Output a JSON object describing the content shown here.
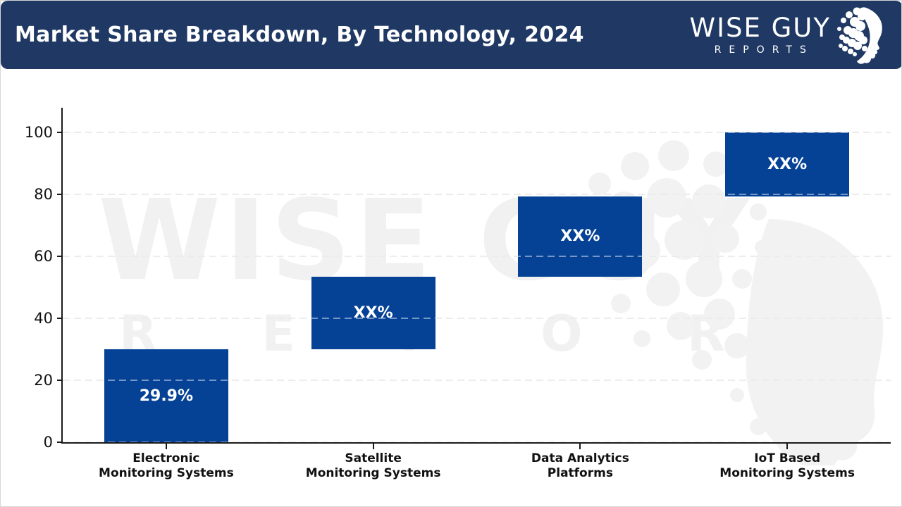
{
  "header": {
    "title": "Market Share Breakdown, By Technology, 2024",
    "logo": {
      "line1": "WISE GUY",
      "line2": "REPORTS"
    }
  },
  "watermark": {
    "line1": "WISE GUY",
    "line2": "R E P O R T S"
  },
  "colors": {
    "header_bg": "#1f3864",
    "bar": "#054296",
    "grid": "#dcdcdc",
    "axis": "#1a1a1a",
    "bar_label_text": "#ffffff",
    "watermark": "#f1f1f1"
  },
  "chart_data": {
    "type": "bar",
    "subtype": "waterfall",
    "title": "Market Share Breakdown, By Technology, 2024",
    "xlabel": "",
    "ylabel": "",
    "ylim": [
      0,
      100
    ],
    "yticks": [
      0,
      20,
      40,
      60,
      80,
      100
    ],
    "grid": "horizontal-dashed",
    "legend": "none",
    "categories": [
      [
        "Electronic",
        "Monitoring Systems"
      ],
      [
        "Satellite",
        "Monitoring Systems"
      ],
      [
        "Data Analytics",
        "Platforms"
      ],
      [
        "IoT Based",
        "Monitoring Systems"
      ]
    ],
    "segments": [
      {
        "start": 0,
        "end": 29.9,
        "label": "29.9%"
      },
      {
        "start": 29.9,
        "end": 53.5,
        "label": "XX%"
      },
      {
        "start": 53.5,
        "end": 79.3,
        "label": "XX%"
      },
      {
        "start": 79.3,
        "end": 100,
        "label": "XX%"
      }
    ]
  }
}
